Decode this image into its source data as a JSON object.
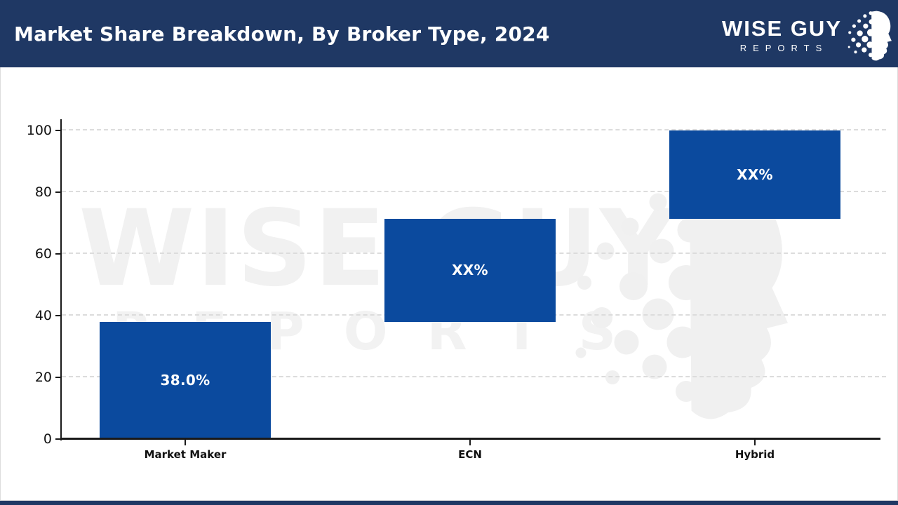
{
  "header": {
    "title": "Market Share Breakdown, By Broker Type, 2024",
    "bg_color": "#1f3864",
    "logo": {
      "line1": "WISE GUY",
      "line2": "REPORTS"
    }
  },
  "watermark": {
    "line1": "WISE GUY",
    "line2": "REPORTS"
  },
  "chart_data": {
    "type": "bar",
    "variant": "waterfall (floating cumulative segments)",
    "title": "Market Share Breakdown, By Broker Type, 2024",
    "categories": [
      "Market Maker",
      "ECN",
      "Hybrid"
    ],
    "segments": [
      {
        "category": "Market Maker",
        "start": 0,
        "end": 38,
        "label": "38.0%"
      },
      {
        "category": "ECN",
        "start": 38,
        "end": 71.4,
        "label": "XX%"
      },
      {
        "category": "Hybrid",
        "start": 71.4,
        "end": 100,
        "label": "XX%"
      }
    ],
    "displayed_values": [
      "38.0%",
      "XX%",
      "XX%"
    ],
    "xlabel": "",
    "ylabel": "",
    "ylim": [
      0,
      100
    ],
    "yticks": [
      0,
      20,
      40,
      60,
      80,
      100
    ],
    "grid": "horizontal dashed",
    "legend": "none",
    "bar_color": "#0b4a9e",
    "bar_label_color": "#ffffff",
    "axis_color": "#1a1a1a"
  }
}
